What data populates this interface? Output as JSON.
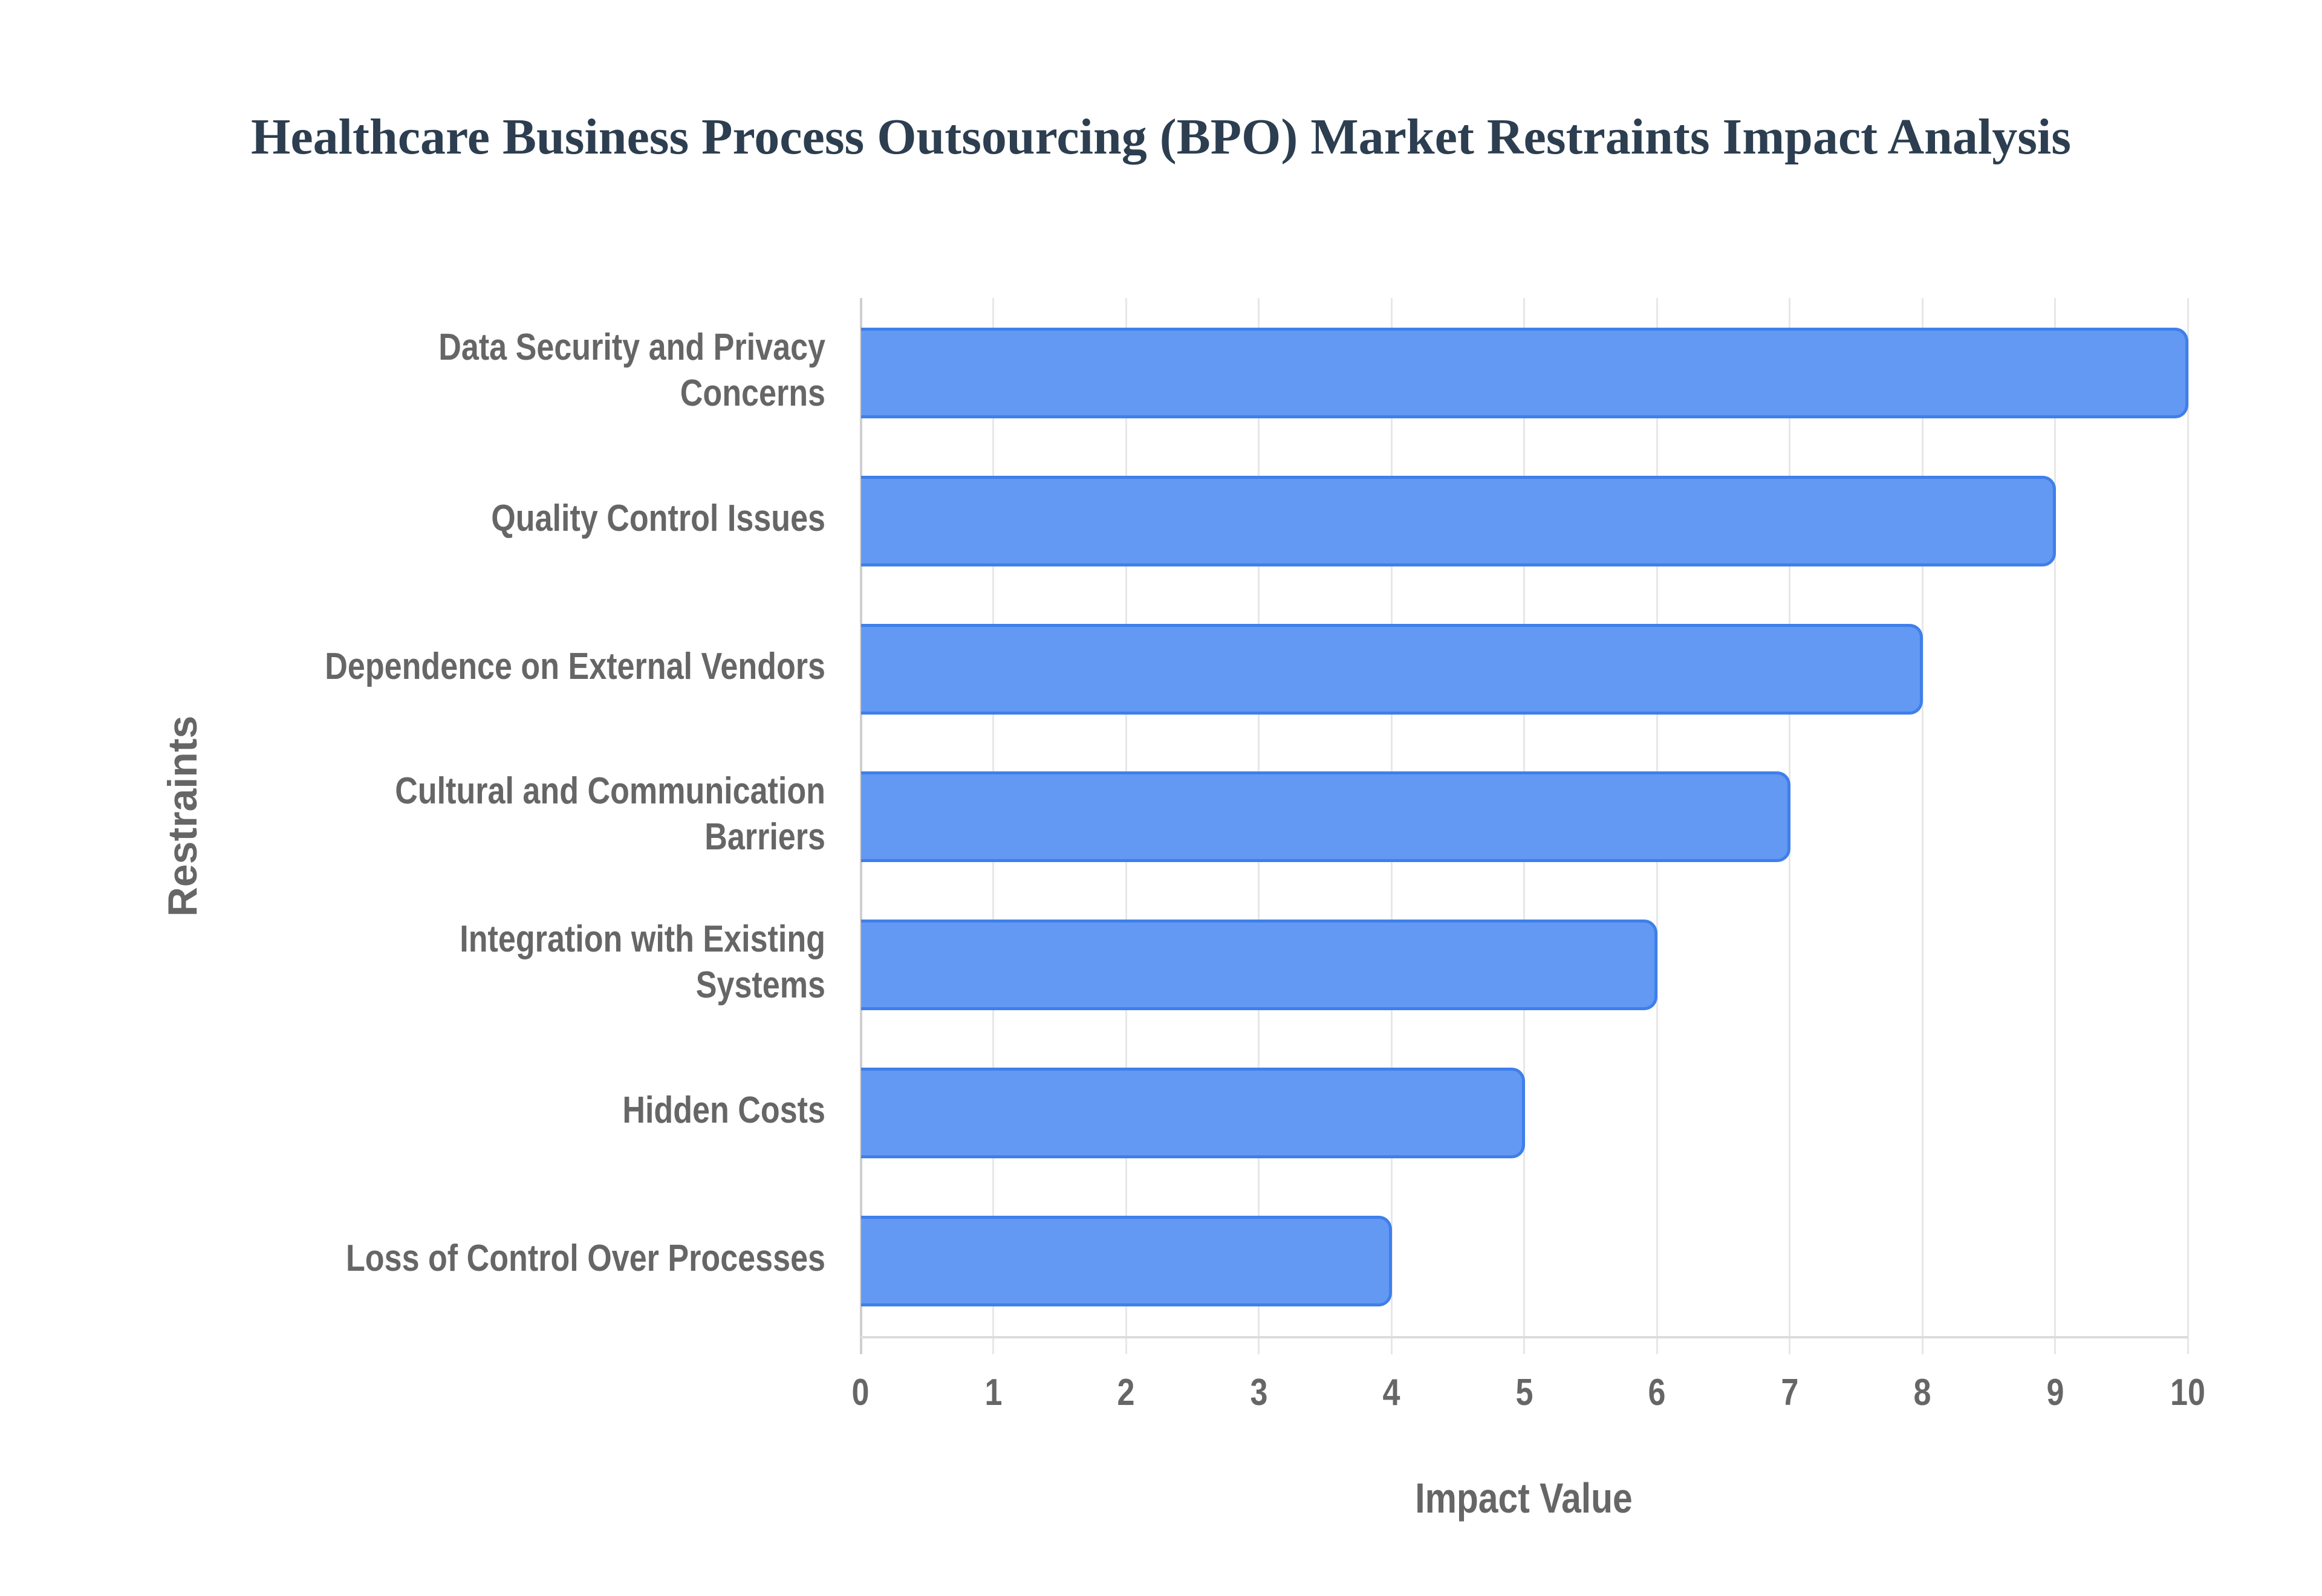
{
  "title": "Healthcare Business Process Outsourcing (BPO) Market Restraints Impact Analysis",
  "colors": {
    "bar_fill": "#6399f3",
    "bar_border": "#3f7fea",
    "title": "#2c3e50",
    "axis_text": "#666666"
  },
  "axes": {
    "x_title": "Impact Value",
    "y_title": "Restraints",
    "x_ticks": [
      "0",
      "1",
      "2",
      "3",
      "4",
      "5",
      "6",
      "7",
      "8",
      "9",
      "10"
    ]
  },
  "bars": [
    {
      "label_lines": [
        "Data Security and Privacy",
        "Concerns"
      ],
      "value": 10
    },
    {
      "label_lines": [
        "Quality Control Issues"
      ],
      "value": 9
    },
    {
      "label_lines": [
        "Dependence on External Vendors"
      ],
      "value": 8
    },
    {
      "label_lines": [
        "Cultural and Communication",
        "Barriers"
      ],
      "value": 7
    },
    {
      "label_lines": [
        "Integration with Existing",
        "Systems"
      ],
      "value": 6
    },
    {
      "label_lines": [
        "Hidden Costs"
      ],
      "value": 5
    },
    {
      "label_lines": [
        "Loss of Control Over Processes"
      ],
      "value": 4
    }
  ],
  "chart_data": {
    "type": "bar",
    "orientation": "horizontal",
    "title": "Healthcare Business Process Outsourcing (BPO) Market Restraints Impact Analysis",
    "xlabel": "Impact Value",
    "ylabel": "Restraints",
    "categories": [
      "Data Security and Privacy Concerns",
      "Quality Control Issues",
      "Dependence on External Vendors",
      "Cultural and Communication Barriers",
      "Integration with Existing Systems",
      "Hidden Costs",
      "Loss of Control Over Processes"
    ],
    "values": [
      10,
      9,
      8,
      7,
      6,
      5,
      4
    ],
    "xlim": [
      0,
      10
    ],
    "x_ticks": [
      0,
      1,
      2,
      3,
      4,
      5,
      6,
      7,
      8,
      9,
      10
    ],
    "grid": {
      "vertical": true,
      "horizontal": false
    },
    "legend": null
  }
}
